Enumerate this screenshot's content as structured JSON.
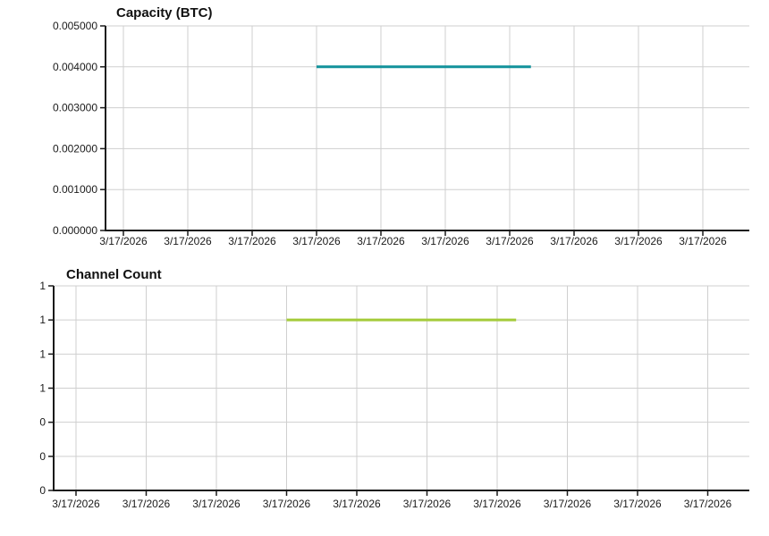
{
  "style": {
    "background": "#ffffff",
    "axis_color": "#1a1a1a",
    "grid_color": "#cfcfcf",
    "capacity_line_color": "#12929B",
    "channel_line_color": "#A4CB3A"
  },
  "chart_data": [
    {
      "type": "line",
      "title": "Capacity (BTC)",
      "ylabel": "",
      "xlabel": "",
      "ylim": [
        0,
        0.005
      ],
      "grid": true,
      "legend": "none",
      "y_tick_values": [
        0.005,
        0.004,
        0.003,
        0.002,
        0.001,
        0
      ],
      "y_tick_labels": [
        "0.005000",
        "0.004000",
        "0.003000",
        "0.002000",
        "0.001000",
        "0.000000"
      ],
      "x_tick_labels": [
        "3/17/2026",
        "3/17/2026",
        "3/17/2026",
        "3/17/2026",
        "3/17/2026",
        "3/17/2026",
        "3/17/2026",
        "3/17/2026",
        "3/17/2026",
        "3/17/2026"
      ],
      "series": [
        {
          "id": "capacity-line",
          "color": "#12929B",
          "constant_value": 0.004,
          "x_start_tick": 3,
          "x_end_tick": 6.33
        }
      ]
    },
    {
      "type": "line",
      "title": "Channel Count",
      "ylabel": "",
      "xlabel": "",
      "ylim": [
        0,
        1.2
      ],
      "grid": true,
      "legend": "none",
      "y_tick_values": [
        1.2,
        1.0,
        0.8,
        0.6,
        0.4,
        0.2,
        0
      ],
      "y_tick_labels": [
        "1",
        "1",
        "1",
        "1",
        "0",
        "0",
        "0"
      ],
      "x_tick_labels": [
        "3/17/2026",
        "3/17/2026",
        "3/17/2026",
        "3/17/2026",
        "3/17/2026",
        "3/17/2026",
        "3/17/2026",
        "3/17/2026",
        "3/17/2026",
        "3/17/2026"
      ],
      "series": [
        {
          "id": "channel-count-line",
          "color": "#A4CB3A",
          "constant_value": 1.0,
          "x_start_tick": 3,
          "x_end_tick": 6.27
        }
      ]
    }
  ]
}
